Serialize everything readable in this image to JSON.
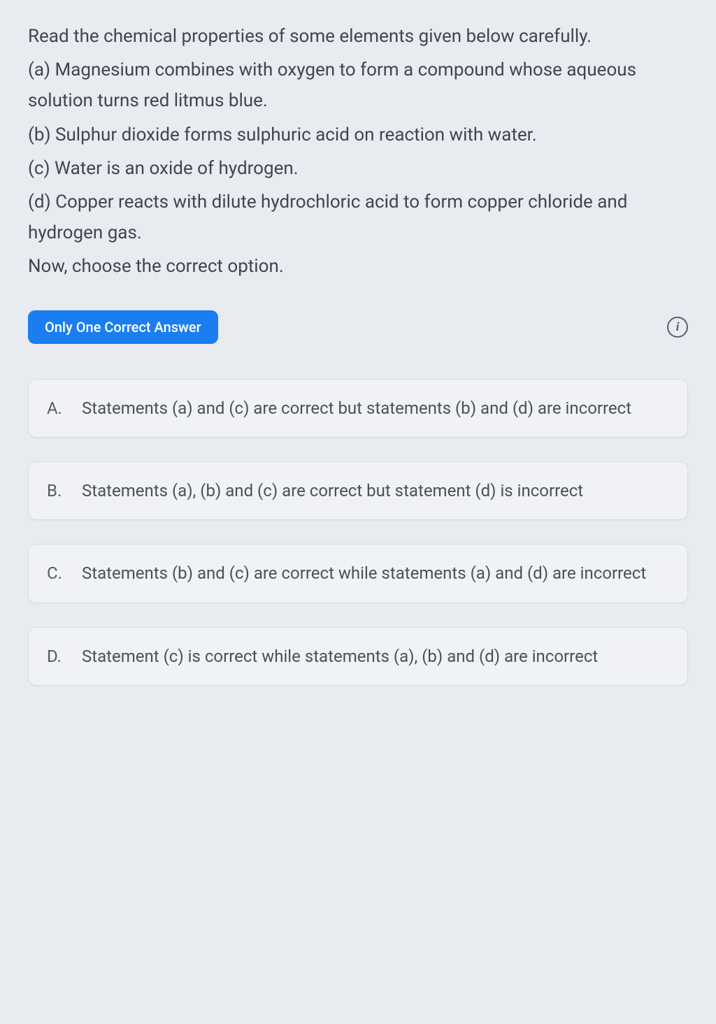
{
  "question": {
    "intro": "Read the chemical properties of some elements given below carefully.",
    "statements": [
      "(a)  Magnesium combines with oxygen to form a compound whose aqueous solution turns red litmus blue.",
      "(b)  Sulphur dioxide forms sulphuric acid on reaction with water.",
      "(c)  Water is an oxide of hydrogen.",
      "(d)  Copper reacts with dilute hydrochloric acid to form copper chloride and hydrogen gas."
    ],
    "prompt": "Now, choose the correct option."
  },
  "badge_label": "Only One Correct Answer",
  "info_glyph": "i",
  "options": [
    {
      "letter": "A.",
      "text": "Statements (a) and (c) are correct but statements (b) and (d) are incorrect"
    },
    {
      "letter": "B.",
      "text": "Statements (a), (b) and (c) are correct but statement (d) is incorrect"
    },
    {
      "letter": "C.",
      "text": "Statements (b) and (c) are correct while statements (a) and (d) are incorrect"
    },
    {
      "letter": "D.",
      "text": "Statement (c) is correct while statements (a), (b) and (d) are incorrect"
    }
  ],
  "colors": {
    "background": "#e8ebef",
    "badge_bg": "#1a7ef0",
    "badge_text": "#ffffff",
    "option_bg": "#f0f2f5",
    "option_border": "#d8dce2",
    "text_color": "#404550"
  }
}
